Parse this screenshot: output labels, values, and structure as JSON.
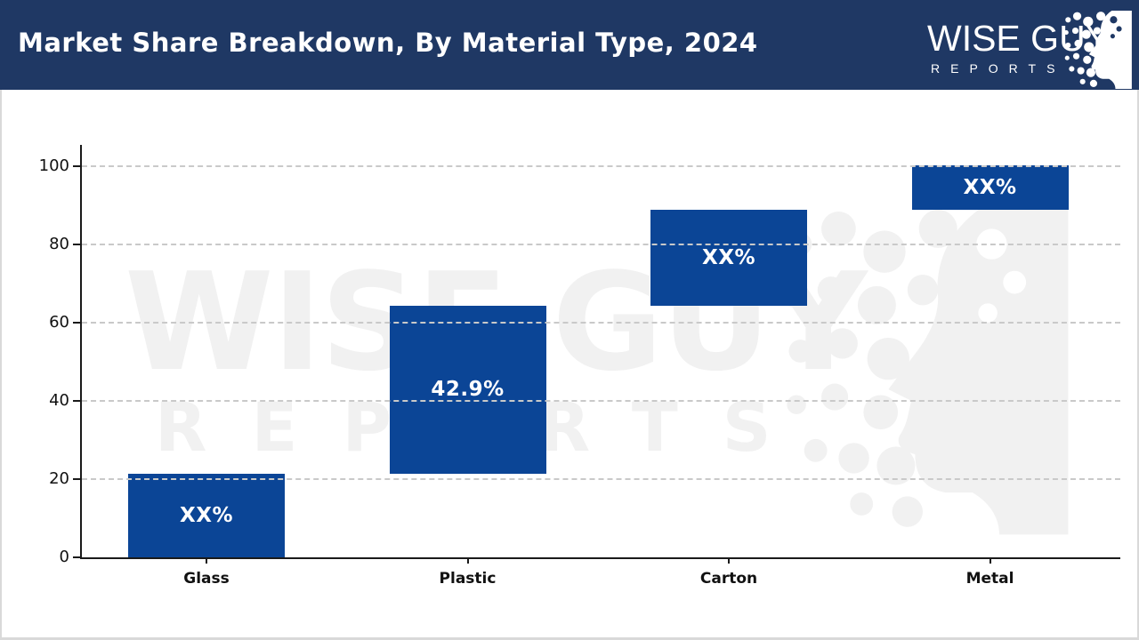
{
  "header": {
    "title": "Market Share Breakdown, By Material Type, 2024",
    "logo": {
      "line1": "WISE GUY",
      "line2": "REPORTS"
    }
  },
  "watermark": {
    "line1": "WISE GUY",
    "line2": "REPORTS"
  },
  "colors": {
    "header_bg": "#1f3864",
    "bar": "#0b4596",
    "bar_label_text": "#ffffff",
    "gridline": "#c9c9c9",
    "axis": "#1a1a1a",
    "tick_text": "#111111",
    "watermark": "#f1f1f1"
  },
  "chart_data": {
    "type": "bar",
    "subtype": "waterfall",
    "title": "Market Share Breakdown, By Material Type, 2024",
    "categories": [
      "Glass",
      "Plastic",
      "Carton",
      "Metal"
    ],
    "segments": [
      {
        "category": "Glass",
        "start": 0,
        "end": 21.4,
        "height": 21.4,
        "label": "XX%"
      },
      {
        "category": "Plastic",
        "start": 21.4,
        "end": 64.3,
        "height": 42.9,
        "label": "42.9%"
      },
      {
        "category": "Carton",
        "start": 64.3,
        "end": 88.9,
        "height": 24.6,
        "label": "XX%"
      },
      {
        "category": "Metal",
        "start": 88.9,
        "end": 100.2,
        "height": 11.3,
        "label": "XX%"
      }
    ],
    "yticks": [
      0,
      20,
      40,
      60,
      80,
      100
    ],
    "ylim": [
      0,
      105.5
    ],
    "xlabel": "",
    "ylabel": "",
    "grid": "horizontal-dashed",
    "gridlines_above_bars": true,
    "legend": null
  }
}
